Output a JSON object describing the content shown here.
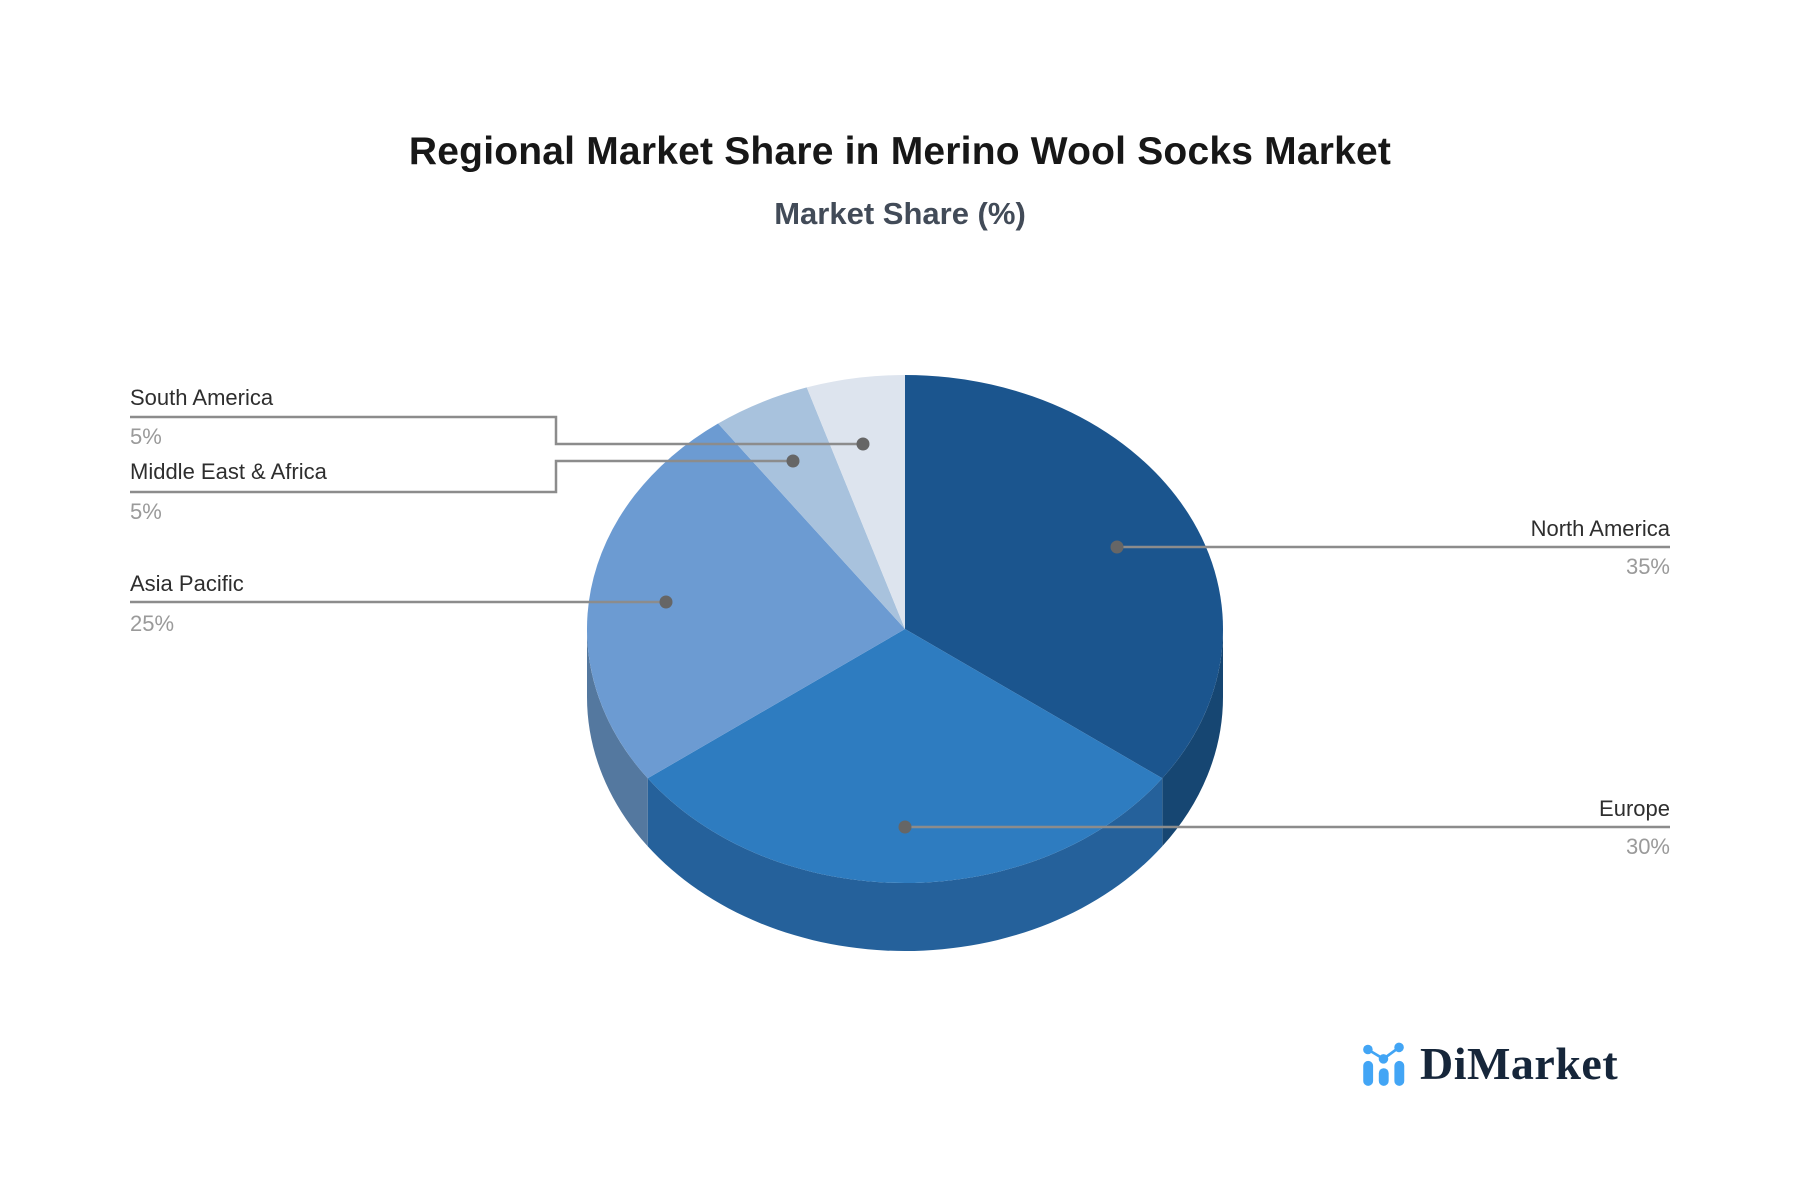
{
  "header": {
    "title": "Regional Market Share in Merino Wool Socks Market",
    "subtitle": "Market Share (%)"
  },
  "chart_data": {
    "type": "pie",
    "style": "3d",
    "title": "Regional Market Share in Merino Wool Socks Market",
    "subtitle": "Market Share (%)",
    "unit": "%",
    "direction": "clockwise",
    "start_at_12_oclock": true,
    "labels": [
      "North America",
      "Europe",
      "Asia Pacific",
      "Middle East & Africa",
      "South America"
    ],
    "values": [
      35,
      30,
      25,
      5,
      5
    ],
    "percent_labels": [
      "35%",
      "30%",
      "25%",
      "5%",
      "5%"
    ],
    "colors": [
      "#1B558E",
      "#2E7CC0",
      "#6C9BD2",
      "#A8C2DD",
      "#DDE4EE"
    ],
    "side_colors": [
      "#164672",
      "#25619B",
      "#54789F",
      "#8FA9C4",
      "#BFC9D8"
    ],
    "legend": "none",
    "leader_line_color": "#8C8C8C",
    "leader_dot_color": "#666666",
    "label_name_color": "#2E2E2E",
    "label_value_color": "#9A9A9A"
  },
  "logo": {
    "text": "DiMarket",
    "color": "#16263A",
    "icon": "bar-chart-with-trend-dots-icon",
    "icon_color": "#42A5F5"
  }
}
